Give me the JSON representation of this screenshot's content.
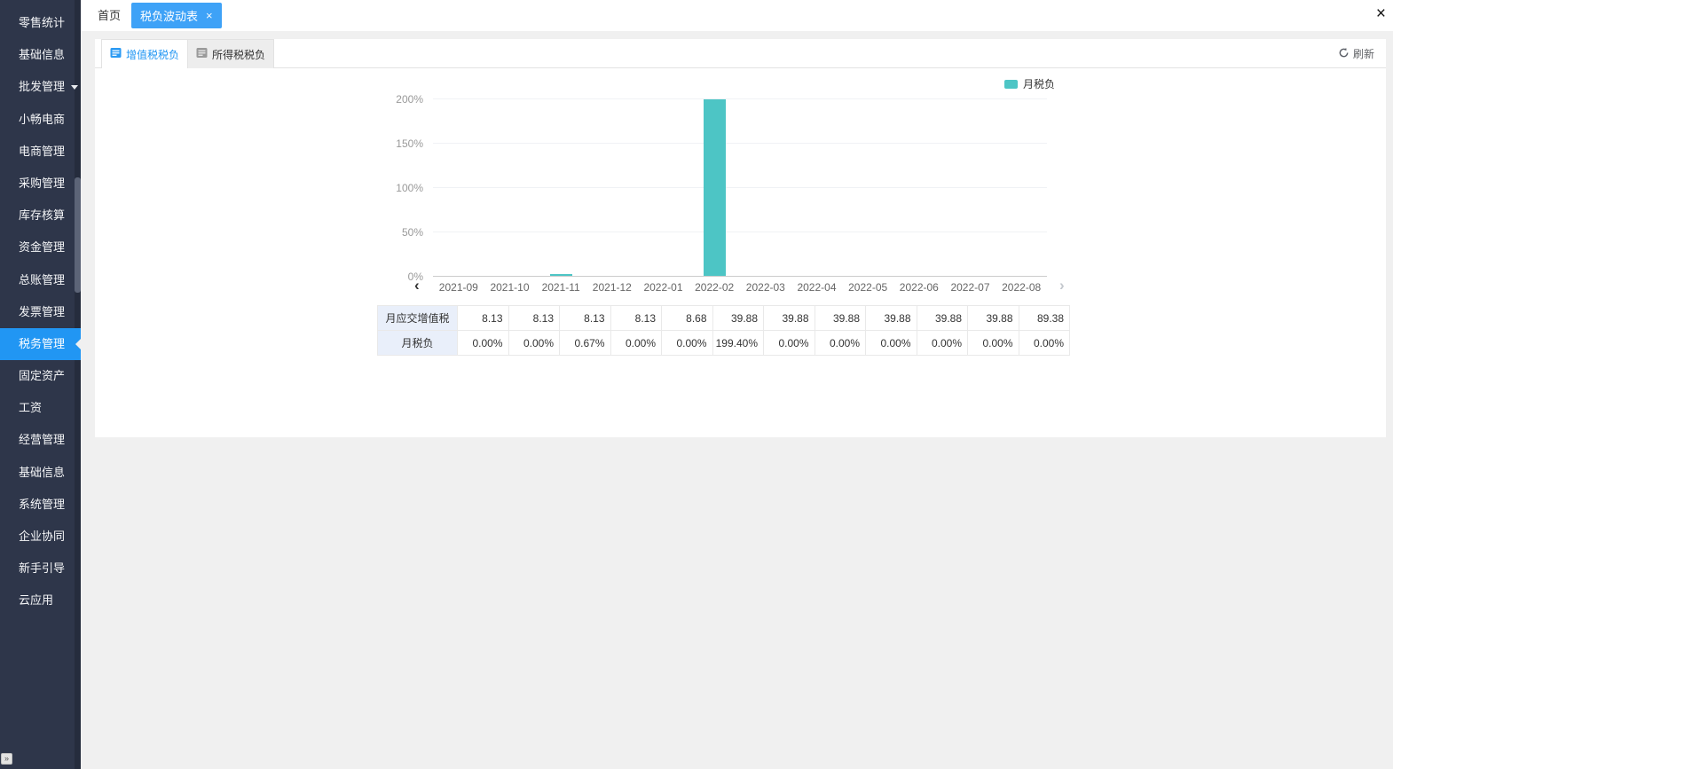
{
  "colors": {
    "sidebar_bg": "#2e364a",
    "sidebar_active": "#2196f3",
    "tab_active_bg": "#3ea2f7",
    "page_bg": "#f0f0f0",
    "bar_teal": "#4dc5c5",
    "table_label_bg": "#e9effa"
  },
  "sidebar": {
    "items": [
      {
        "label": "零售统计"
      },
      {
        "label": "基础信息"
      },
      {
        "label": "批发管理",
        "caret": true
      },
      {
        "label": "小畅电商"
      },
      {
        "label": "电商管理"
      },
      {
        "label": "采购管理"
      },
      {
        "label": "库存核算"
      },
      {
        "label": "资金管理"
      },
      {
        "label": "总账管理"
      },
      {
        "label": "发票管理"
      },
      {
        "label": "税务管理",
        "active": true
      },
      {
        "label": "固定资产"
      },
      {
        "label": "工资"
      },
      {
        "label": "经营管理"
      },
      {
        "label": "基础信息"
      },
      {
        "label": "系统管理"
      },
      {
        "label": "企业协同"
      },
      {
        "label": "新手引导"
      },
      {
        "label": "云应用"
      }
    ]
  },
  "tabbar": {
    "home_label": "首页",
    "active_label": "税负波动表",
    "close_glyph": "×"
  },
  "window": {
    "close_glyph": "×"
  },
  "panel": {
    "tabs": [
      {
        "label": "增值税税负"
      },
      {
        "label": "所得税税负"
      }
    ],
    "refresh_label": "刷新"
  },
  "pagination": {
    "prev": "‹",
    "next": "›"
  },
  "misc": {
    "collapse_glyph": "»"
  },
  "chart_data": {
    "type": "bar",
    "title": "",
    "categories": [
      "2021-09",
      "2021-10",
      "2021-11",
      "2021-12",
      "2022-01",
      "2022-02",
      "2022-03",
      "2022-04",
      "2022-05",
      "2022-06",
      "2022-07",
      "2022-08"
    ],
    "series": [
      {
        "name": "月税负",
        "values": [
          0,
          0,
          0.67,
          0,
          0,
          199.4,
          0,
          0,
          0,
          0,
          0,
          0
        ]
      }
    ],
    "y_ticks": [
      0,
      50,
      100,
      150,
      200
    ],
    "y_tick_suffix": "%",
    "ylim": [
      0,
      200
    ],
    "legend": [
      "月税负"
    ],
    "legend_position": "top-right",
    "grid": true,
    "bar_color": "#4dc5c5"
  },
  "table": {
    "rows": [
      {
        "label": "月应交增值税",
        "values": [
          "8.13",
          "8.13",
          "8.13",
          "8.13",
          "8.68",
          "39.88",
          "39.88",
          "39.88",
          "39.88",
          "39.88",
          "39.88",
          "89.38"
        ]
      },
      {
        "label": "月税负",
        "values": [
          "0.00%",
          "0.00%",
          "0.67%",
          "0.00%",
          "0.00%",
          "199.40%",
          "0.00%",
          "0.00%",
          "0.00%",
          "0.00%",
          "0.00%",
          "0.00%"
        ]
      }
    ]
  }
}
